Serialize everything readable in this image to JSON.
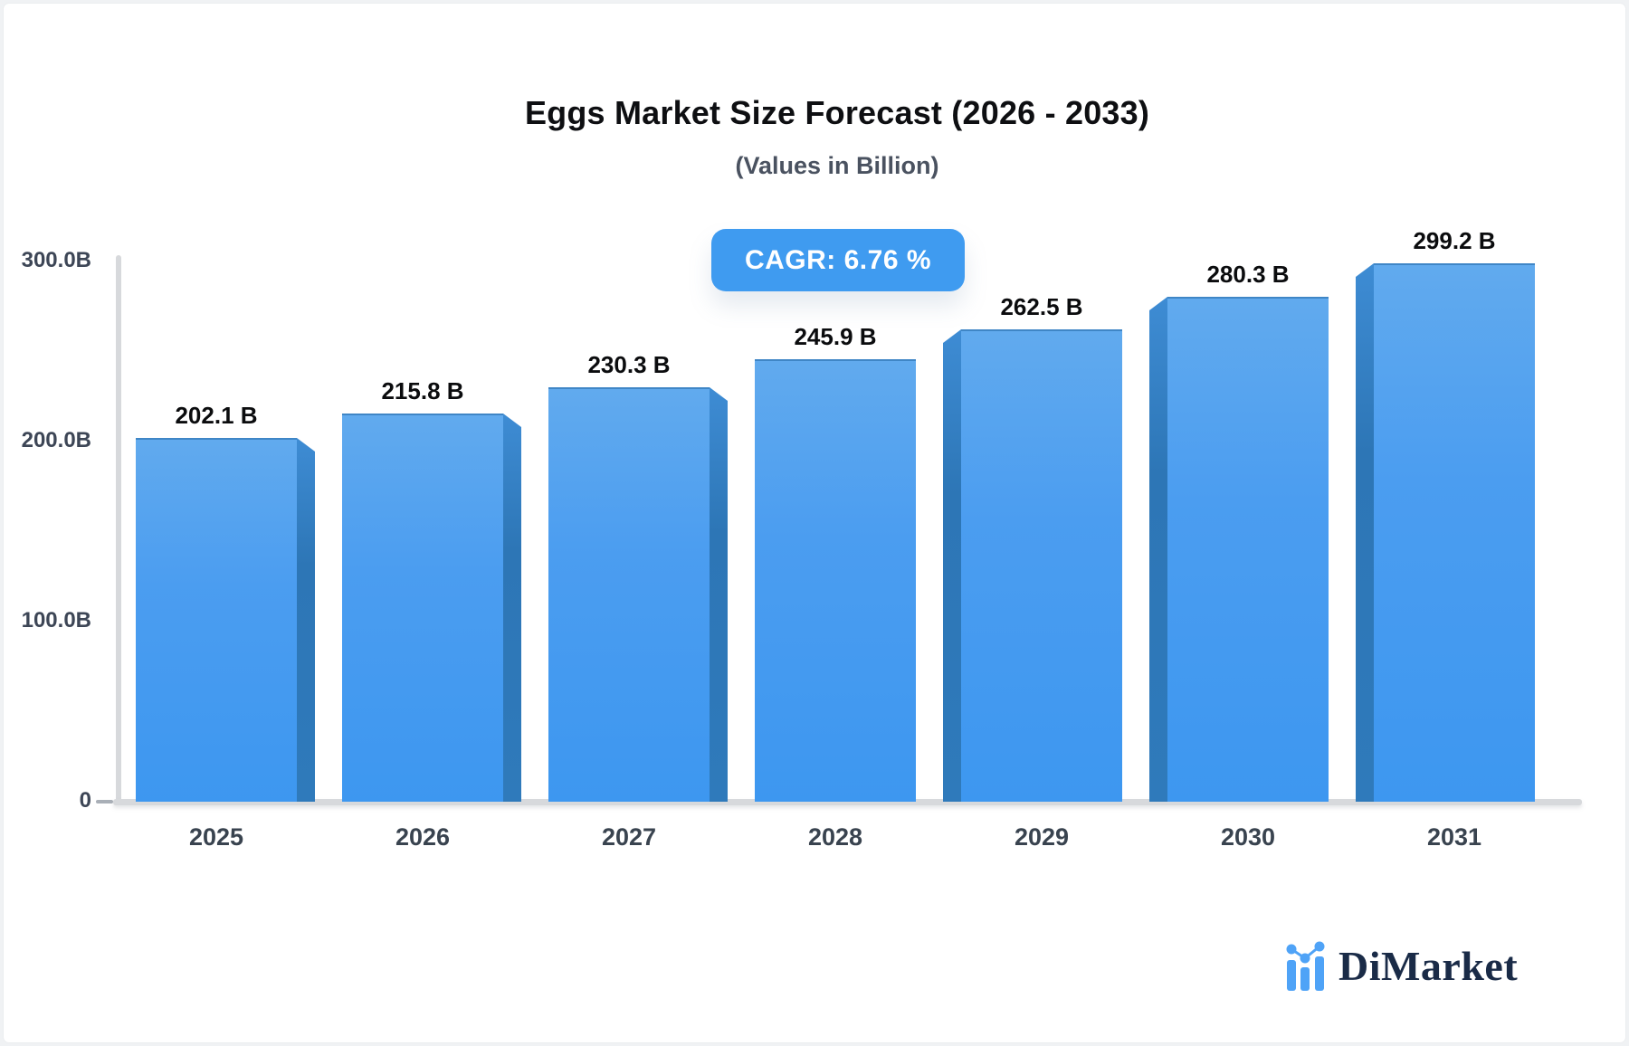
{
  "title": "Eggs Market Size Forecast (2026 - 2033)",
  "subtitle": "(Values in Billion)",
  "badge": {
    "label": "CAGR: 6.76 %"
  },
  "chart_data": {
    "type": "bar",
    "title": "Eggs Market Size Forecast (2026 - 2033)",
    "subtitle": "(Values in Billion)",
    "unit": "Billion",
    "categories": [
      "2025",
      "2026",
      "2027",
      "2028",
      "2029",
      "2030",
      "2031"
    ],
    "values": [
      202.1,
      215.8,
      230.3,
      245.9,
      262.5,
      280.3,
      299.2
    ],
    "value_labels": [
      "202.1 B",
      "215.8 B",
      "230.3 B",
      "245.9 B",
      "262.5 B",
      "280.3 B",
      "299.2 B"
    ],
    "cagr": "6.76 %",
    "yticks": [
      {
        "label": "300.0B",
        "value": 300
      },
      {
        "label": "200.0B",
        "value": 200
      },
      {
        "label": "100.0B",
        "value": 100
      },
      {
        "label": "0",
        "value": 0
      }
    ],
    "ylim": [
      0,
      300
    ],
    "xlabel": "",
    "ylabel": "",
    "grid": false,
    "legend": false,
    "bar_color_top": "#61AAEE",
    "bar_color_bottom": "#3D97F0",
    "bar_side_color": "#2D76B6"
  },
  "colors": {
    "badge_bg": "#3F9BF0",
    "badge_text": "#FFFFFF",
    "axis_line": "#D7D9DC",
    "axis_text": "#3D4656",
    "title_text": "#0E0F12",
    "subtitle_text": "#4A5260",
    "logo_text_color": "#1A2B47",
    "logo_icon_color": "#4FA3F7"
  },
  "logo": {
    "text": "DiMarket",
    "icon": "bar-chart-trend-icon"
  }
}
